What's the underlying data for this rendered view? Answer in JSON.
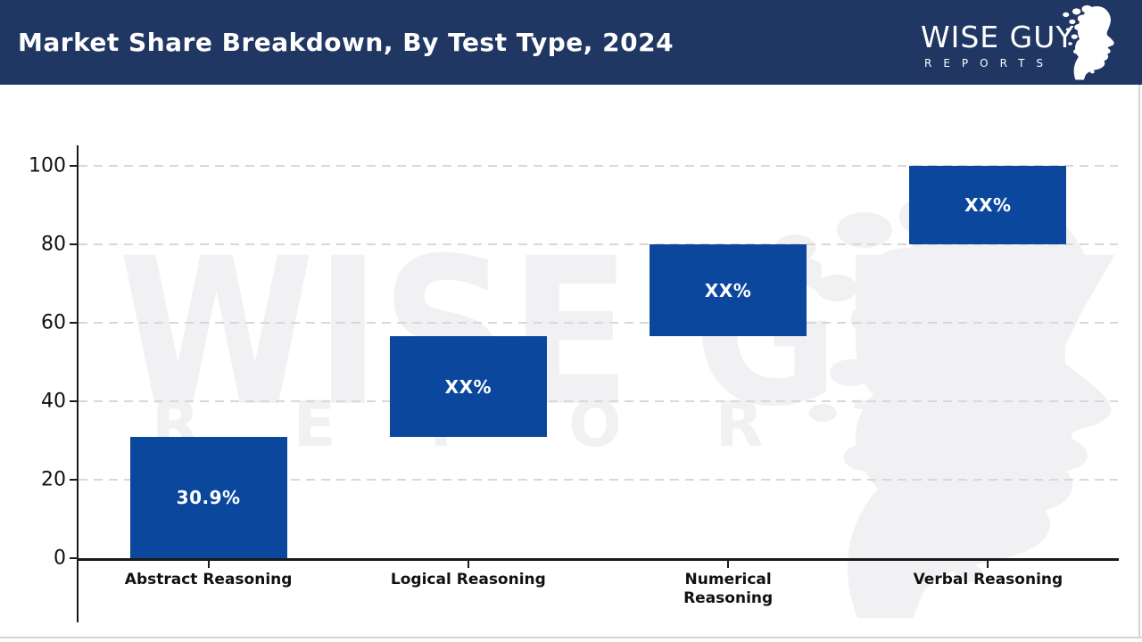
{
  "header": {
    "title": "Market Share Breakdown, By Test Type, 2024",
    "logo": {
      "name_line": "WISE GUY",
      "reports_line": "REPORTS"
    }
  },
  "watermark": {
    "line1": "WISE GUY",
    "line2": "REPORTS"
  },
  "chart_data": {
    "type": "bar",
    "subtype": "waterfall",
    "title": "Market Share Breakdown, By Test Type, 2024",
    "categories": [
      "Abstract Reasoning",
      "Logical Reasoning",
      "Numerical Reasoning",
      "Verbal Reasoning"
    ],
    "category_lines": [
      [
        "Abstract Reasoning"
      ],
      [
        "Logical Reasoning"
      ],
      [
        "Numerical",
        "Reasoning"
      ],
      [
        "Verbal Reasoning"
      ]
    ],
    "segments": [
      {
        "category": "Abstract Reasoning",
        "start": 0,
        "end": 30.9,
        "label": "30.9%"
      },
      {
        "category": "Logical Reasoning",
        "start": 30.9,
        "end": 56.5,
        "label": "XX%"
      },
      {
        "category": "Numerical Reasoning",
        "start": 56.5,
        "end": 80,
        "label": "XX%"
      },
      {
        "category": "Verbal Reasoning",
        "start": 80,
        "end": 100,
        "label": "XX%"
      }
    ],
    "xlabel": "",
    "ylabel": "",
    "ylim": [
      0,
      100
    ],
    "yticks": [
      0,
      20,
      40,
      60,
      80,
      100
    ],
    "grid": "horizontal-dashed",
    "legend": "none",
    "colors": {
      "bar": "#0b489d",
      "bar_label": "#ffffff",
      "axis": "#1a1a1a",
      "gridline": "#d8d8d8",
      "header_bg": "#203764",
      "header_text": "#ffffff",
      "watermark": "#f1f1f3",
      "frame": "#d5d5d5"
    }
  }
}
